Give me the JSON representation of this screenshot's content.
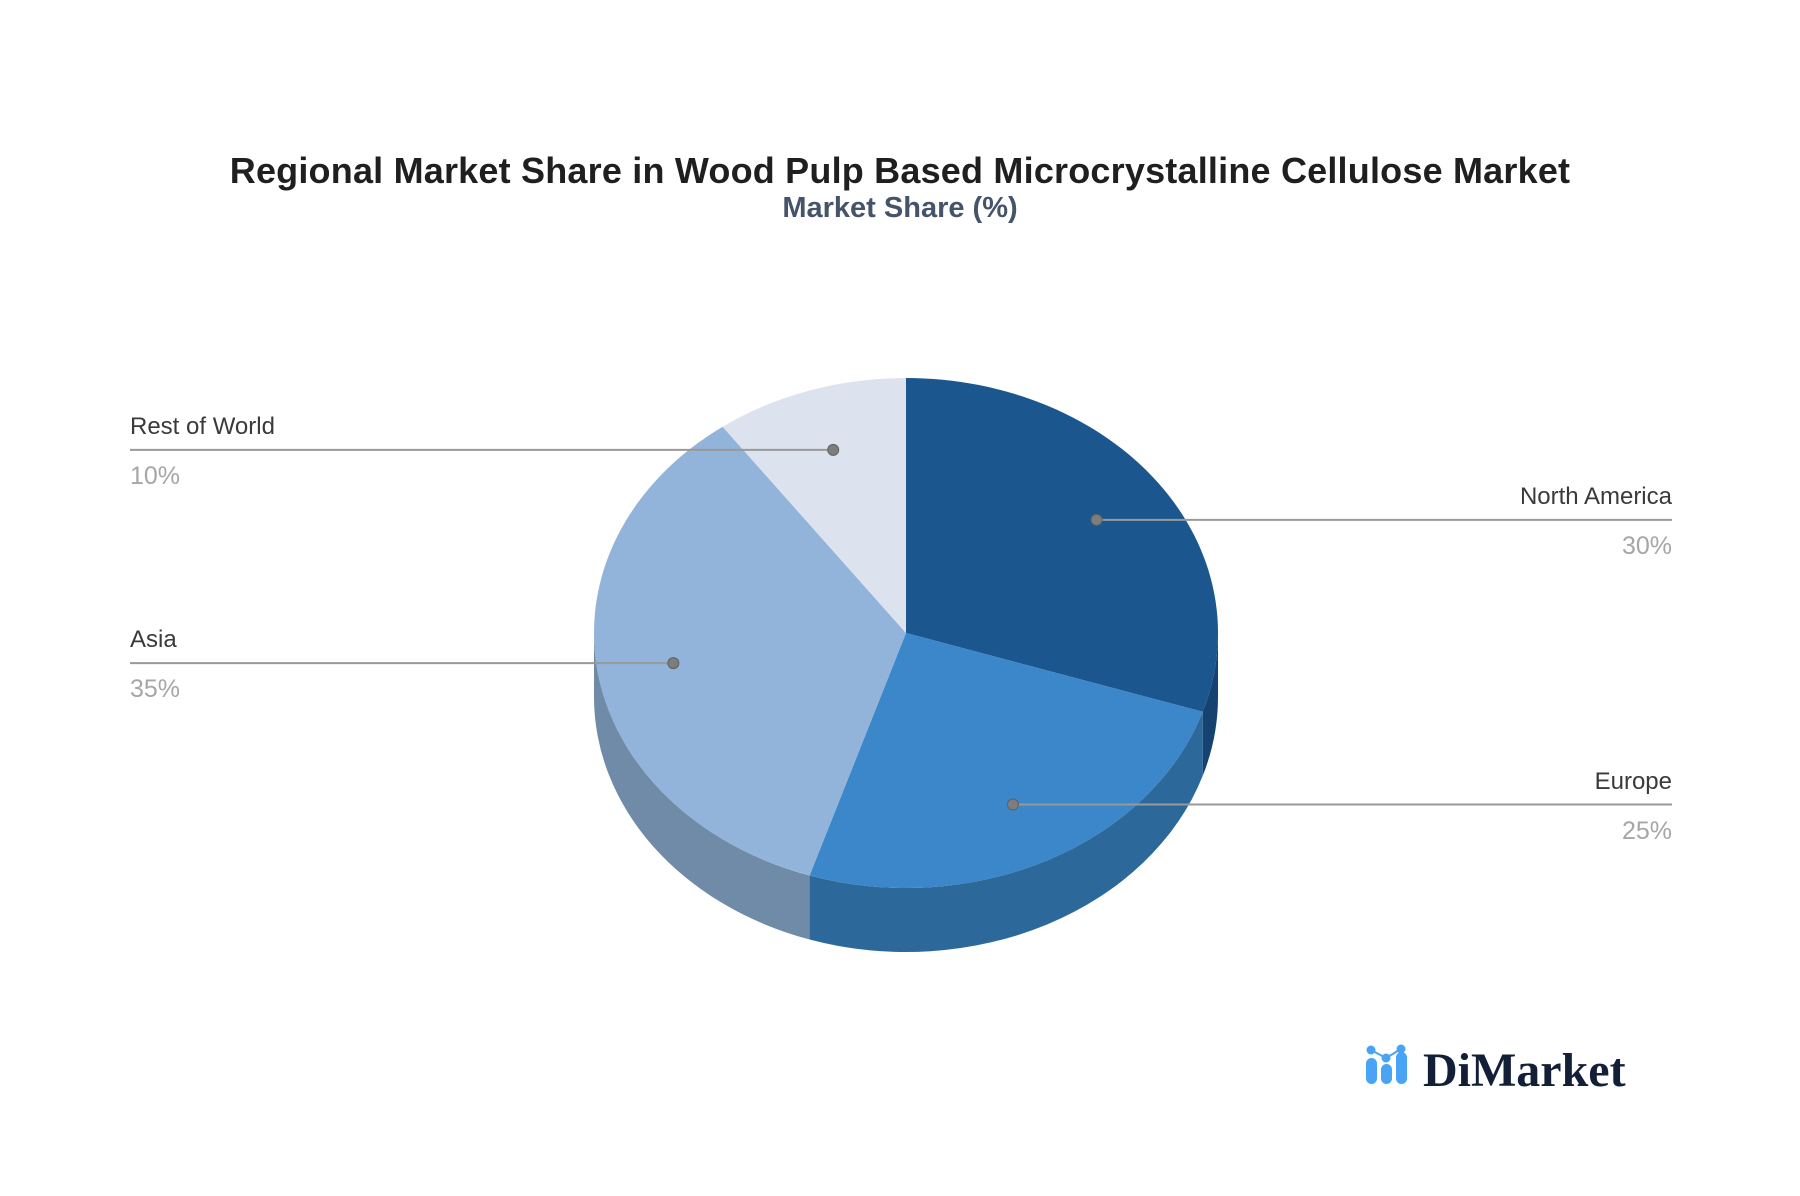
{
  "chart_data": {
    "type": "pie",
    "style": "3d",
    "title": "Regional Market Share in Wood Pulp Based Microcrystalline Cellulose Market",
    "subtitle": "Market Share (%)",
    "unit": "%",
    "start_angle": "12-oclock",
    "direction": "clockwise",
    "legend_position": "none",
    "labeling": "leader-line-callouts",
    "slices": [
      {
        "label": "North America",
        "value": 30,
        "display": "30%",
        "color": "#1b568f",
        "callout_side": "right"
      },
      {
        "label": "Europe",
        "value": 25,
        "display": "25%",
        "color": "#3b87c9",
        "callout_side": "right"
      },
      {
        "label": "Asia",
        "value": 35,
        "display": "35%",
        "color": "#92b4da",
        "callout_side": "left"
      },
      {
        "label": "Rest of World",
        "value": 10,
        "display": "10%",
        "color": "#dde3ee",
        "callout_side": "left"
      }
    ]
  },
  "branding": {
    "logo_text": "DiMarket",
    "logo_icon": "bar-chart-with-trend-icon",
    "logo_icon_color": "#4aa4f6",
    "logo_text_color": "#131f37"
  },
  "colors": {
    "background": "#ffffff",
    "title": "#1f1f1f",
    "subtitle": "#45536b",
    "callout_label": "#3a3a3a",
    "callout_value": "#a6a6a6",
    "leader_line": "#999999",
    "leader_dot": "#7d7d7d"
  }
}
